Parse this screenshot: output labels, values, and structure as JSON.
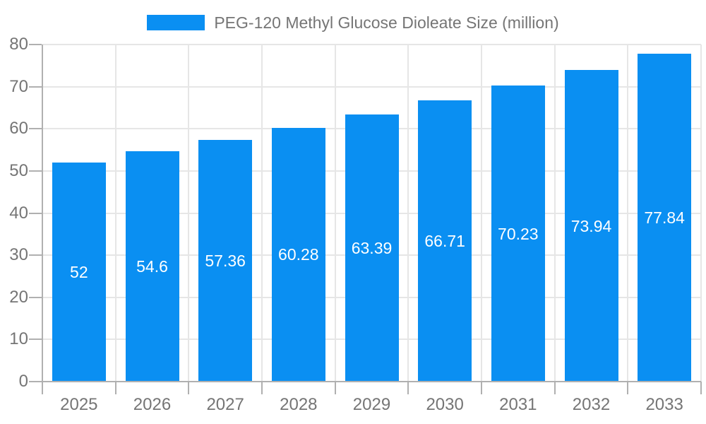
{
  "legend": {
    "label": "PEG-120 Methyl Glucose Dioleate Size (million)"
  },
  "colors": {
    "bar": "#0a8ff2",
    "axis": "#b0b0b0",
    "tick": "#b0b0b0",
    "gridline": "#e6e6e6",
    "label_text": "#757575",
    "value_text": "#ffffff",
    "background": "#ffffff"
  },
  "chart_data": {
    "type": "bar",
    "title": "PEG-120 Methyl Glucose Dioleate Size (million)",
    "categories": [
      "2025",
      "2026",
      "2027",
      "2028",
      "2029",
      "2030",
      "2031",
      "2032",
      "2033"
    ],
    "values": [
      52,
      54.6,
      57.36,
      60.28,
      63.39,
      66.71,
      70.23,
      73.94,
      77.84
    ],
    "xlabel": "",
    "ylabel": "",
    "ylim": [
      0,
      80
    ],
    "yticks": [
      0,
      10,
      20,
      30,
      40,
      50,
      60,
      70,
      80
    ],
    "grid": true,
    "legend_position": "top-center",
    "value_label_position": "inside-center",
    "bar_color": "#0a8ff2"
  }
}
